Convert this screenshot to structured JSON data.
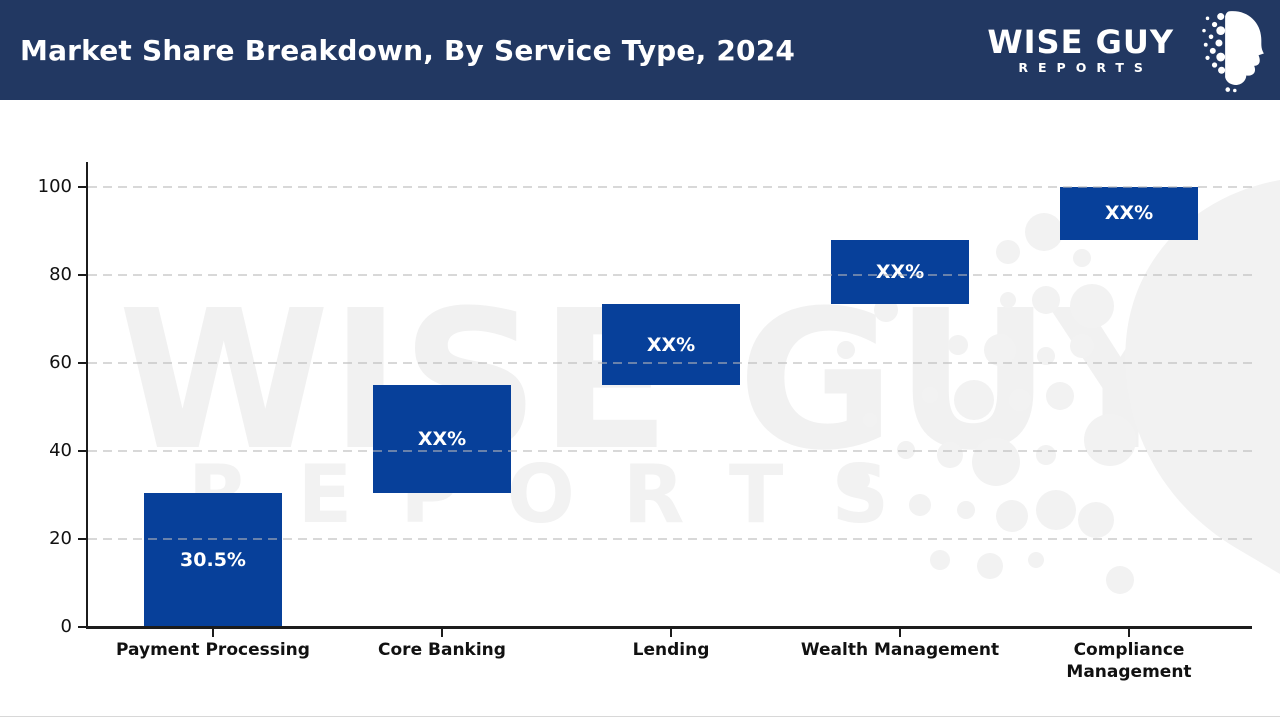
{
  "header": {
    "title": "Market Share Breakdown, By Service Type, 2024",
    "background_color": "#223862",
    "logo": {
      "line1": "WISE GUY",
      "line2": "REPORTS",
      "face_icon": "dotted-head-profile"
    }
  },
  "watermark": {
    "line1": "WISE GUY",
    "line2": "REPORTS"
  },
  "chart_data": {
    "type": "bar",
    "subtype": "waterfall",
    "title": "Market Share Breakdown, By Service Type, 2024",
    "categories": [
      "Payment Processing",
      "Core Banking",
      "Lending",
      "Wealth Management",
      "Compliance Management"
    ],
    "segments": [
      {
        "category": "Payment Processing",
        "start": 0,
        "end": 30.5,
        "label": "30.5%"
      },
      {
        "category": "Core Banking",
        "start": 30.5,
        "end": 55,
        "label": "XX%"
      },
      {
        "category": "Lending",
        "start": 55,
        "end": 73.3,
        "label": "XX%"
      },
      {
        "category": "Wealth Management",
        "start": 73.3,
        "end": 88,
        "label": "XX%"
      },
      {
        "category": "Compliance Management",
        "start": 88,
        "end": 100,
        "label": "XX%"
      }
    ],
    "xlabel": "",
    "ylabel": "",
    "ylim": [
      0,
      100
    ],
    "yticks": [
      0,
      20,
      40,
      60,
      80,
      100
    ],
    "grid": "horizontal-dashed-over-bars",
    "legend": "none",
    "bar_color": "#07409a",
    "bar_label_color": "#ffffff",
    "axis_color": "#1c1c1c"
  }
}
